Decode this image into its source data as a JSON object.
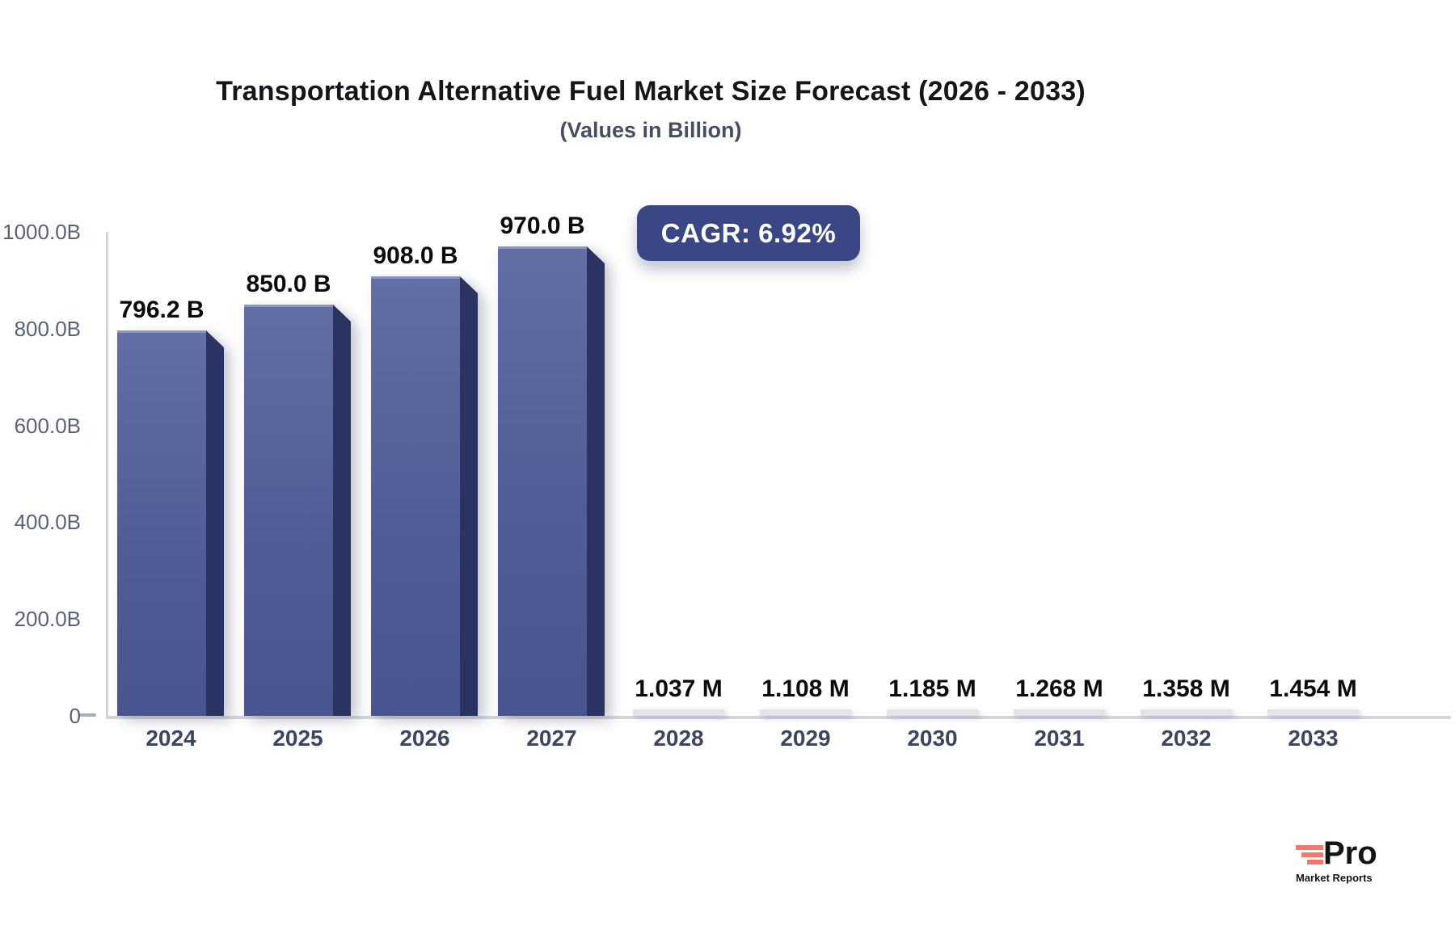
{
  "header": {
    "title": "Transportation Alternative Fuel Market Size Forecast (2026 - 2033)",
    "subtitle": "(Values in Billion)"
  },
  "badge": {
    "label": "CAGR: 6.92%"
  },
  "chart_data": {
    "type": "bar",
    "title": "Transportation Alternative Fuel Market Size Forecast (2026 - 2033)",
    "subtitle": "(Values in Billion)",
    "cagr_percent": 6.92,
    "ylim": [
      0,
      1000
    ],
    "y_unit": "Billion",
    "grid": false,
    "legend": null,
    "y_ticks": [
      {
        "value": 1000,
        "label": "1000.0B"
      },
      {
        "value": 800,
        "label": "800.0B"
      },
      {
        "value": 600,
        "label": "600.0B"
      },
      {
        "value": 400,
        "label": "400.0B"
      },
      {
        "value": 200,
        "label": "200.0B"
      },
      {
        "value": 0,
        "label": "0"
      }
    ],
    "categories": [
      "2024",
      "2025",
      "2026",
      "2027",
      "2028",
      "2029",
      "2030",
      "2031",
      "2032",
      "2033"
    ],
    "points": [
      {
        "year": "2024",
        "label": "796.2 B",
        "value_billion": 796.2
      },
      {
        "year": "2025",
        "label": "850.0 B",
        "value_billion": 850.0
      },
      {
        "year": "2026",
        "label": "908.0 B",
        "value_billion": 908.0
      },
      {
        "year": "2027",
        "label": "970.0 B",
        "value_billion": 970.0
      },
      {
        "year": "2028",
        "label": "1.037 M",
        "value_billion": 0.001037
      },
      {
        "year": "2029",
        "label": "1.108 M",
        "value_billion": 0.001108
      },
      {
        "year": "2030",
        "label": "1.185 M",
        "value_billion": 0.001185
      },
      {
        "year": "2031",
        "label": "1.268 M",
        "value_billion": 0.001268
      },
      {
        "year": "2032",
        "label": "1.358 M",
        "value_billion": 0.001358
      },
      {
        "year": "2033",
        "label": "1.454 M",
        "value_billion": 0.001454
      }
    ]
  },
  "branding": {
    "logo_text": "Pro",
    "logo_subtext": "Market Reports"
  },
  "colors": {
    "bar_face_top": "#636ea4",
    "bar_face_bottom": "#4a5590",
    "bar_side": "#2b3363",
    "bar_top_edge": "#8d96c0",
    "tiny_bar": "#e3e4e9",
    "axis_line": "#d2d5dd",
    "badge_bg": "#3a4784",
    "badge_text": "#ffffff",
    "title_text": "#15151c",
    "subtitle_text": "#454f61",
    "tick_text": "#5a6278",
    "year_text": "#3c4660",
    "value_text": "#0c0c10",
    "logo_accent": "#f4766d",
    "logo_text_color": "#141414"
  }
}
